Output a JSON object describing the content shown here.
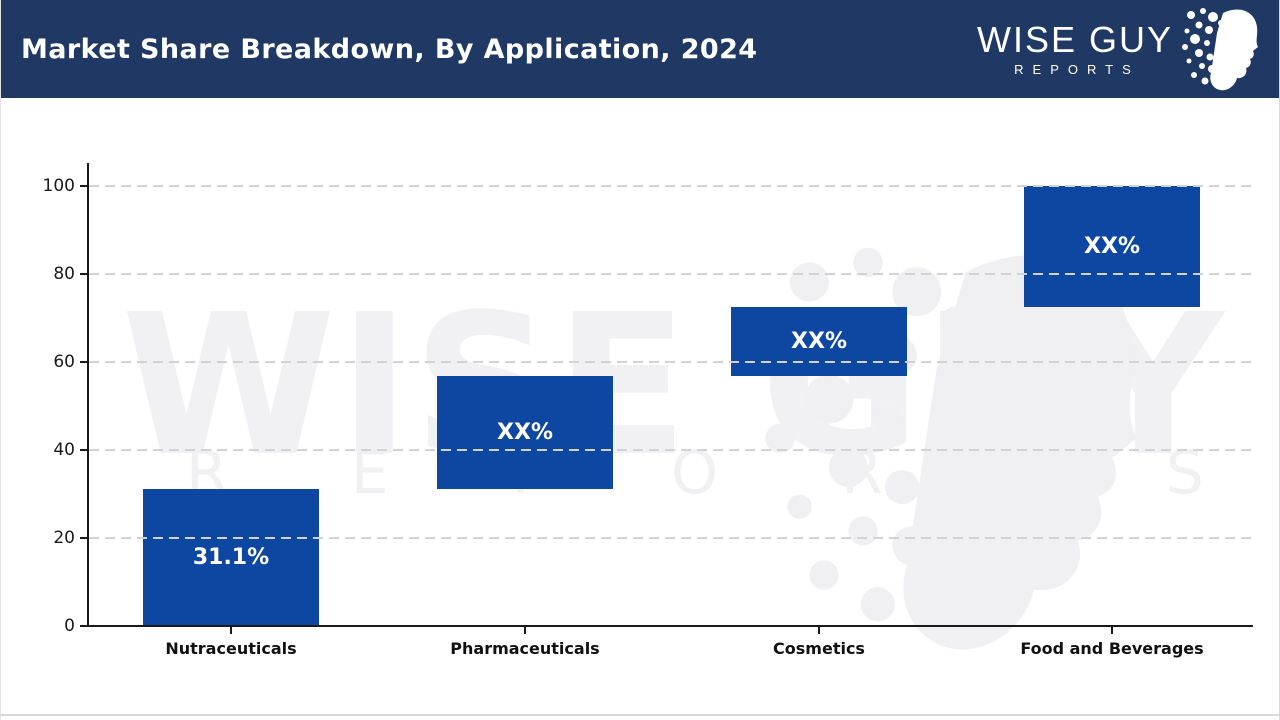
{
  "header": {
    "title": "Market Share Breakdown, By Application, 2024",
    "bg_color": "#1f3864",
    "logo": {
      "line1": "WISE GUY",
      "line2": "REPORTS"
    }
  },
  "watermark": {
    "line1": "WISE GUY",
    "line2": "R E P O R T S"
  },
  "chart_data": {
    "type": "bar",
    "subtype": "waterfall",
    "title": "Market Share Breakdown, By Application, 2024",
    "xlabel": "",
    "ylabel": "",
    "categories": [
      "Nutraceuticals",
      "Pharmaceuticals",
      "Cosmetics",
      "Food and Beverages"
    ],
    "segments": [
      {
        "category": "Nutraceuticals",
        "label": "31.1%",
        "start": 0,
        "end": 31.1
      },
      {
        "category": "Pharmaceuticals",
        "label": "XX%",
        "start": 31.1,
        "end": 56.8
      },
      {
        "category": "Cosmetics",
        "label": "XX%",
        "start": 56.8,
        "end": 72.5
      },
      {
        "category": "Food and Beverages",
        "label": "XX%",
        "start": 72.5,
        "end": 100
      }
    ],
    "y_ticks": [
      0,
      20,
      40,
      60,
      80,
      100
    ],
    "ylim": [
      0,
      105
    ],
    "grid": "horizontal-dashed",
    "legend": "none",
    "bar_color": "#0d47a1",
    "bar_label_color": "#ffffff",
    "grid_color": "#d2d2d2",
    "axis_color": "#1a1a1a"
  }
}
